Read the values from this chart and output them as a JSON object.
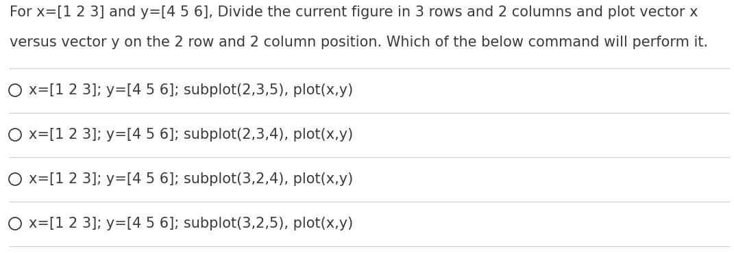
{
  "title_line1": "For x=[1 2 3] and y=[4 5 6], Divide the current figure in 3 rows and 2 columns and plot vector x",
  "title_line2": "versus vector y on the 2 row and 2 column position. Which of the below command will perform it.",
  "options": [
    "x=[1 2 3]; y=[4 5 6]; subplot(2,3,5), plot(x,y)",
    "x=[1 2 3]; y=[4 5 6]; subplot(2,3,4), plot(x,y)",
    "x=[1 2 3]; y=[4 5 6]; subplot(3,2,4), plot(x,y)",
    "x=[1 2 3]; y=[4 5 6]; subplot(3,2,5), plot(x,y)"
  ],
  "background_color": "#ffffff",
  "text_color": "#3a3a3a",
  "line_color": "#cccccc",
  "title_fontsize": 15.0,
  "option_fontsize": 15.0,
  "fig_width": 10.71,
  "fig_height": 3.7,
  "dpi": 100
}
